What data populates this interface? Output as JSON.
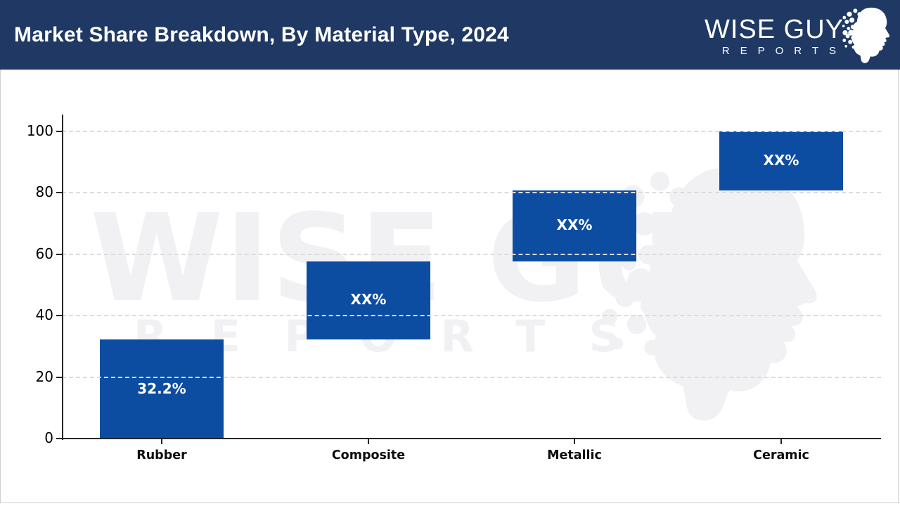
{
  "header": {
    "title": "Market Share Breakdown, By Material Type, 2024",
    "logo": {
      "line1": "WISE GUY",
      "line2": "REPORTS"
    }
  },
  "watermark": {
    "line1": "WISE GUY",
    "line2": "REPORTS"
  },
  "chart_data": {
    "type": "bar",
    "subtype": "waterfall",
    "title": "Market Share Breakdown, By Material Type, 2024",
    "categories": [
      "Rubber",
      "Composite",
      "Metallic",
      "Ceramic"
    ],
    "segments": [
      {
        "category": "Rubber",
        "start": 0,
        "end": 32.2,
        "label": "32.2%"
      },
      {
        "category": "Composite",
        "start": 32.2,
        "end": 57.7,
        "label": "XX%"
      },
      {
        "category": "Metallic",
        "start": 57.7,
        "end": 80.6,
        "label": "XX%"
      },
      {
        "category": "Ceramic",
        "start": 80.6,
        "end": 100,
        "label": "XX%"
      }
    ],
    "ylim": [
      0,
      100
    ],
    "yticks": [
      0,
      20,
      40,
      60,
      80,
      100
    ],
    "xlabel": "",
    "ylabel": "",
    "grid": "dashed-horizontal",
    "legend": "none",
    "bar_color": "#0c4da2",
    "value_label_color": "#ffffff",
    "header_bg_color": "#1f3864",
    "gridline_color": "#dcdcdc",
    "watermark_color": "#f1f1f4"
  }
}
